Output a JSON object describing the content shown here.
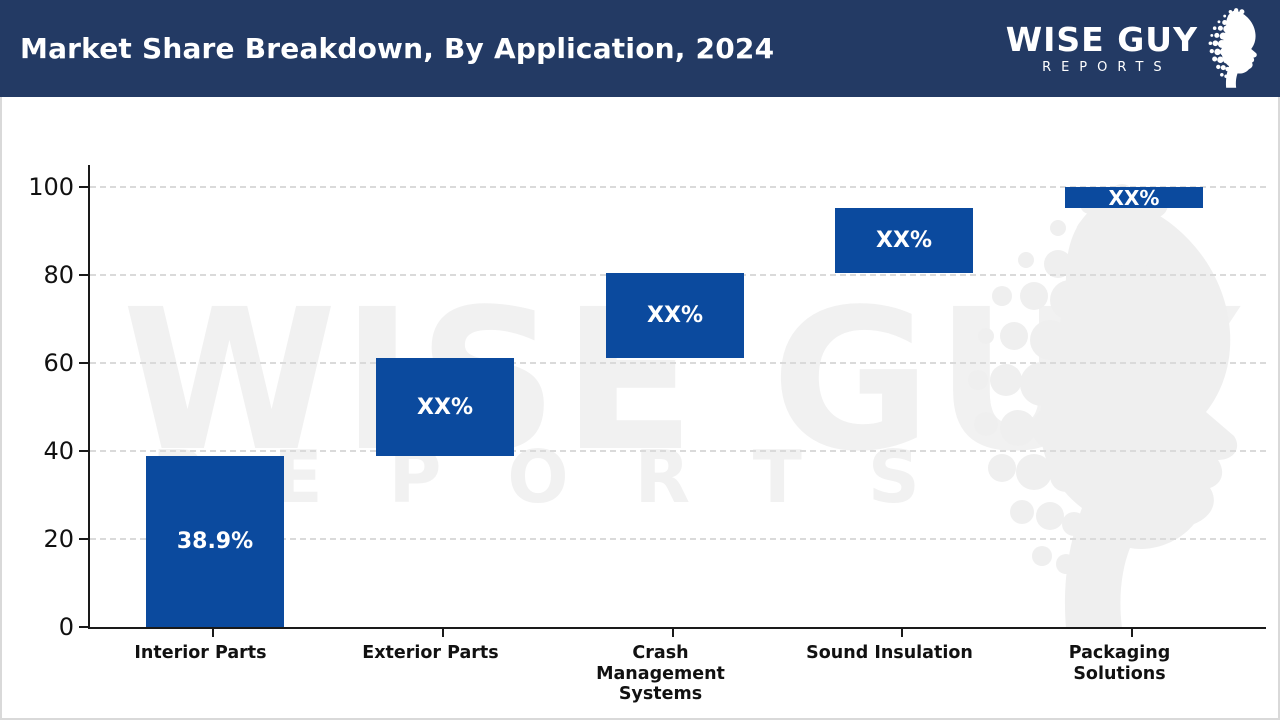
{
  "header": {
    "title": "Market Share Breakdown, By Application, 2024",
    "logo": {
      "line1": "WISE GUY",
      "line2": "REPORTS"
    }
  },
  "watermark": {
    "line1": "WISE GUY",
    "line2": "REPORTS"
  },
  "colors": {
    "header_bg": "#233a64",
    "bar": "#0b4a9e",
    "bar_label": "#ffffff",
    "grid": "#dadada",
    "axis": "#1a1a1a",
    "watermark": "#f1f1f1"
  },
  "chart_data": {
    "type": "bar",
    "subtype": "floating-waterfall",
    "title": "Market Share Breakdown, By Application, 2024",
    "categories": [
      "Interior Parts",
      "Exterior Parts",
      "Crash Management Systems",
      "Sound Insulation",
      "Packaging Solutions"
    ],
    "series": [
      {
        "name": "Market Share",
        "segments": [
          {
            "category": "Interior Parts",
            "start": 0,
            "end": 38.9,
            "label": "38.9%"
          },
          {
            "category": "Exterior Parts",
            "start": 38.9,
            "end": 61.1,
            "label": "XX%"
          },
          {
            "category": "Crash Management Systems",
            "start": 61.1,
            "end": 80.4,
            "label": "XX%"
          },
          {
            "category": "Sound Insulation",
            "start": 80.4,
            "end": 95.2,
            "label": "XX%"
          },
          {
            "category": "Packaging Solutions",
            "start": 95.2,
            "end": 100,
            "label": "XX%"
          }
        ]
      }
    ],
    "xlabel": "",
    "ylabel": "",
    "ylim": [
      0,
      105
    ],
    "yticks": [
      0,
      20,
      40,
      60,
      80,
      100
    ],
    "grid": "horizontal-dashed",
    "legend": false
  }
}
